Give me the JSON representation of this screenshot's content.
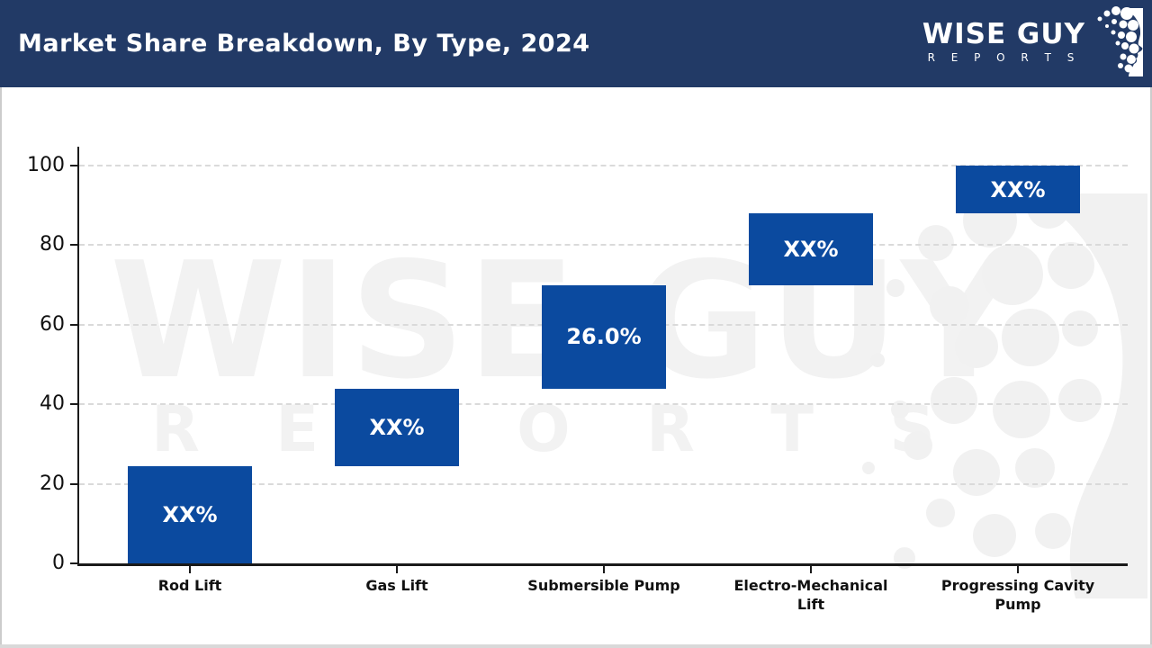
{
  "header": {
    "title": "Market Share Breakdown, By Type, 2024",
    "background_color": "#223a66",
    "logo": {
      "wordmark": "WISE GUY",
      "subtext": "R E P O R T S"
    }
  },
  "watermark": {
    "line1": "WISE GUY",
    "line2": "R E P O R T S"
  },
  "chart_data": {
    "type": "bar",
    "subtype": "waterfall",
    "title": "Market Share Breakdown, By Type, 2024",
    "categories": [
      "Rod Lift",
      "Gas Lift",
      "Submersible Pump",
      "Electro-Mechanical\nLift",
      "Progressing Cavity\nPump"
    ],
    "segments": [
      {
        "category": "Rod Lift",
        "start": 0,
        "end": 24.5,
        "value": 24.5,
        "label": "XX%"
      },
      {
        "category": "Gas Lift",
        "start": 24.5,
        "end": 44,
        "value": 19.5,
        "label": "XX%"
      },
      {
        "category": "Submersible Pump",
        "start": 44,
        "end": 70,
        "value": 26.0,
        "label": "26.0%"
      },
      {
        "category": "Electro-Mechanical Lift",
        "start": 70,
        "end": 88,
        "value": 18.0,
        "label": "XX%"
      },
      {
        "category": "Progressing Cavity Pump",
        "start": 88,
        "end": 100,
        "value": 12.0,
        "label": "XX%"
      }
    ],
    "xlabel": "",
    "ylabel": "",
    "ylim": [
      0,
      100
    ],
    "yticks": [
      0,
      20,
      40,
      60,
      80,
      100
    ],
    "grid": "horizontal-dashed",
    "legend": "none",
    "bar_color": "#0b4a9f",
    "bar_label_color": "#ffffff",
    "axis_color": "#1a1a1a",
    "gridline_color": "#dadada"
  }
}
